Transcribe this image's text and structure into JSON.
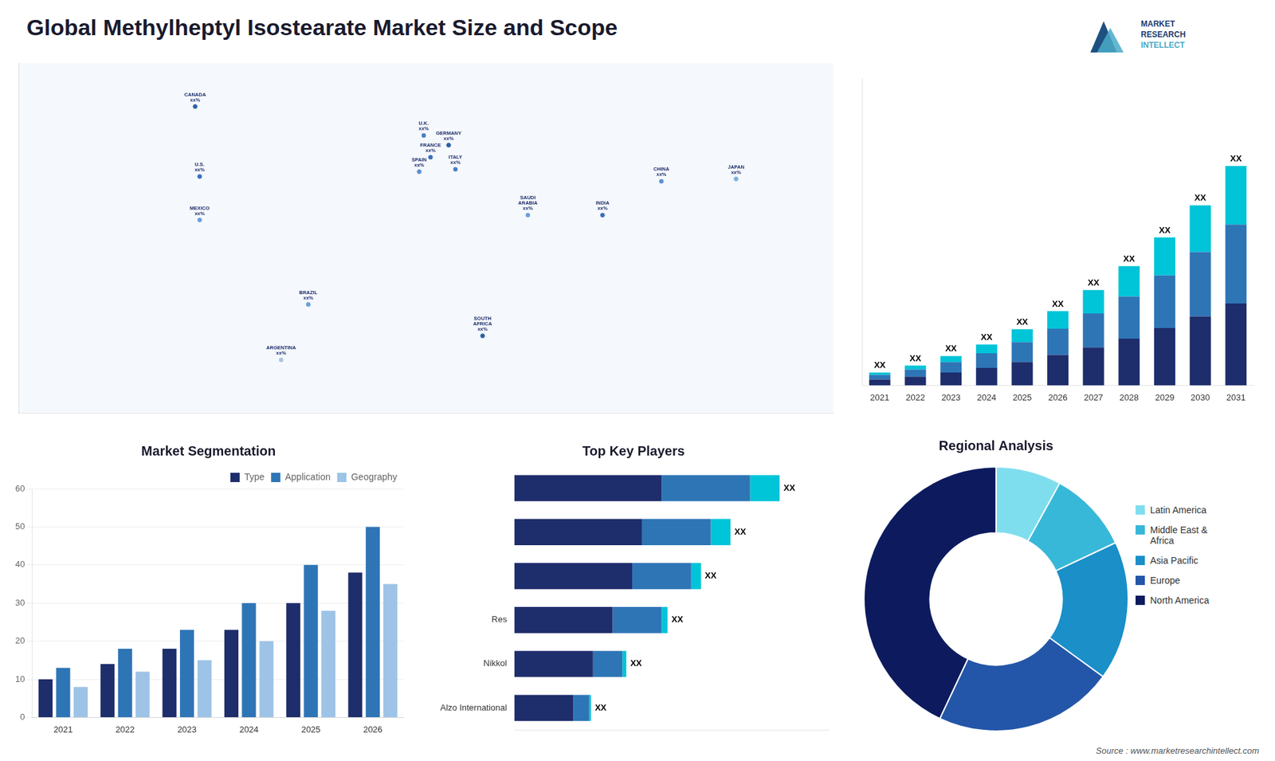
{
  "title": "Global Methylheptyl Isostearate Market Size and Scope",
  "annotations": [
    "MARKET",
    "RESEARCH",
    "INTELLECT",
    "Source : www.marketresearchintellect.com"
  ],
  "chart_data": [
    {
      "type": "map",
      "annotations": [
        "CANADA\nxx%",
        "U.S.\nxx%",
        "MEXICO\nxx%",
        "BRAZIL\nxx%",
        "ARGENTINA\nxx%",
        "U.K.\nxx%",
        "FRANCE\nxx%",
        "SPAIN\nxx%",
        "GERMANY\nxx%",
        "ITALY\nxx%",
        "SAUDI\nARABIA\nxx%",
        "SOUTH\nAFRICA\nxx%",
        "CHINA\nxx%",
        "INDIA\nxx%",
        "JAPAN\nxx%"
      ],
      "x": [
        -102,
        -100,
        -100,
        -52,
        -64,
        -1,
        2,
        -3,
        10,
        13,
        45,
        25,
        104,
        78,
        137
      ],
      "y": [
        67,
        38,
        20,
        -15,
        -38,
        55,
        46,
        40,
        51,
        41,
        22,
        -28,
        36,
        22,
        37
      ],
      "colors": [
        "#2e5fa3",
        "#3a6fbc",
        "#6a9fd8",
        "#6a9fd8",
        "#aac4e0",
        "#4a7fc1",
        "#3a6fbc",
        "#5a8fd0",
        "#2e5fa3",
        "#4a7fc1",
        "#6a9fd8",
        "#2e5fa3",
        "#5a8fd0",
        "#3a6fbc",
        "#7aafdf"
      ],
      "xlim": [
        -180,
        180
      ],
      "ylim": [
        -60,
        85
      ],
      "tick_labels": false
    },
    {
      "type": "bar",
      "stacked": true,
      "categories": [
        "2021",
        "2022",
        "2023",
        "2024",
        "2025",
        "2026",
        "2027",
        "2028",
        "2029",
        "2030",
        "2031"
      ],
      "series": [
        {
          "color": "#1e2d6b",
          "values": [
            1.0,
            1.5,
            2.2,
            3.0,
            4.0,
            5.2,
            6.5,
            8.0,
            9.8,
            11.8,
            14.0
          ]
        },
        {
          "color": "#2e75b6",
          "values": [
            0.8,
            1.2,
            1.8,
            2.5,
            3.4,
            4.5,
            5.8,
            7.2,
            9.0,
            11.0,
            13.5
          ]
        },
        {
          "color": "#00c4d8",
          "values": [
            0.4,
            0.7,
            1.0,
            1.5,
            2.2,
            3.0,
            4.0,
            5.2,
            6.5,
            8.0,
            10.0
          ]
        }
      ],
      "annotations": [
        "XX",
        "XX",
        "XX",
        "XX",
        "XX",
        "XX",
        "XX",
        "XX",
        "XX",
        "XX",
        "XX"
      ],
      "ylim": [
        0,
        52.5
      ],
      "tick_labels": "x",
      "grid": false
    },
    {
      "type": "bar",
      "title": "Market Segmentation",
      "categories": [
        "2021",
        "2022",
        "2023",
        "2024",
        "2025",
        "2026"
      ],
      "series": [
        {
          "name": "Type",
          "color": "#1e2d6b",
          "values": [
            10,
            14,
            18,
            23,
            30,
            38
          ]
        },
        {
          "name": "Application",
          "color": "#2e75b6",
          "values": [
            13,
            18,
            23,
            30,
            40,
            50
          ]
        },
        {
          "name": "Geography",
          "color": "#9dc3e6",
          "values": [
            8,
            12,
            15,
            20,
            28,
            35
          ]
        }
      ],
      "ylim": [
        0,
        60
      ],
      "yticks": [
        0,
        10,
        20,
        30,
        40,
        50,
        60
      ],
      "grid": true,
      "legend": "upper right"
    },
    {
      "type": "bar",
      "orientation": "horizontal",
      "stacked": true,
      "title": "Top Key Players",
      "categories": [
        null,
        null,
        null,
        "Res",
        "Nikkol",
        "Alzo International"
      ],
      "series": [
        {
          "color": "#1e2d6b",
          "values": [
            7.5,
            6.5,
            6.0,
            5.0,
            4.0,
            3.0
          ]
        },
        {
          "color": "#2e75b6",
          "values": [
            4.5,
            3.5,
            3.0,
            2.5,
            1.5,
            0.8
          ]
        },
        {
          "color": "#00c4d8",
          "values": [
            1.5,
            1.0,
            0.5,
            0.3,
            0.2,
            0.1
          ]
        }
      ],
      "annotations": [
        "XX",
        "XX",
        "XX",
        "XX",
        "XX",
        "XX"
      ],
      "xlim": [
        0,
        16
      ],
      "tick_labels": "y",
      "grid": false
    },
    {
      "type": "doughnut",
      "title": "Regional Analysis",
      "categories": [
        "Latin America",
        "Middle East &\nAfrica",
        "Asia Pacific",
        "Europe",
        "North America"
      ],
      "values": [
        8,
        10,
        17,
        22,
        43
      ],
      "colors": [
        "#7fdeee",
        "#38b8d8",
        "#1a8fc8",
        "#2356a8",
        "#0d1b5e"
      ],
      "legend": "right"
    }
  ]
}
